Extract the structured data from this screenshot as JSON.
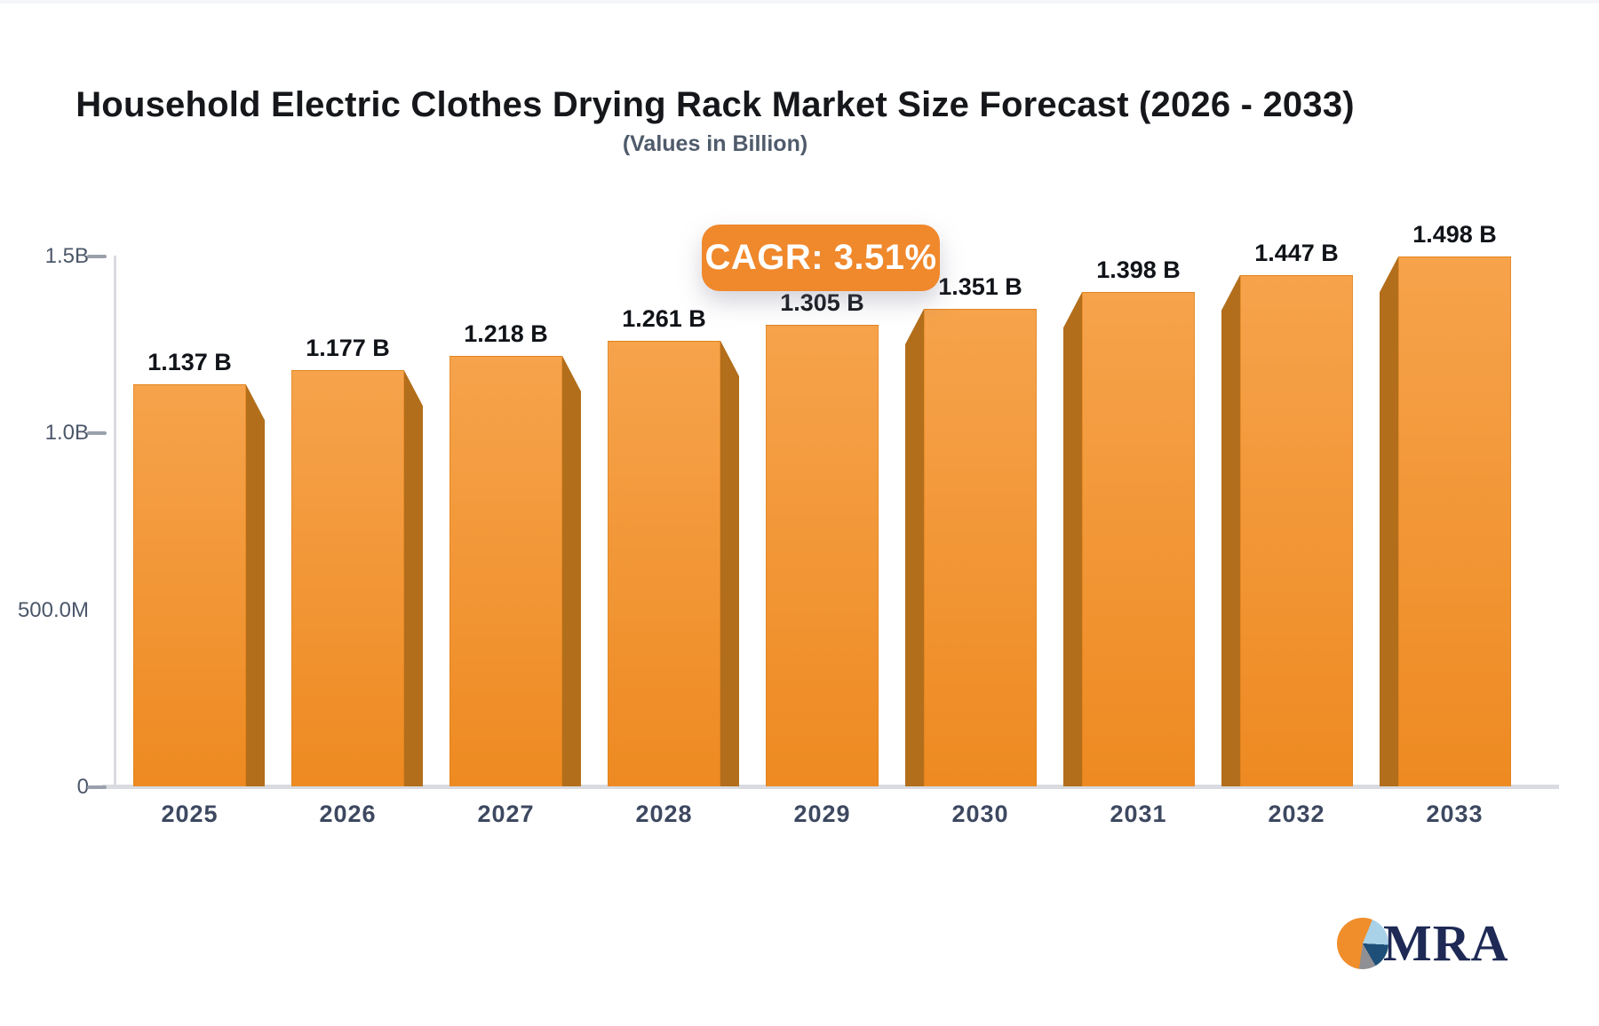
{
  "chart_data": {
    "type": "bar",
    "title": "Household Electric Clothes Drying Rack Market Size Forecast (2026 - 2033)",
    "subtitle": "(Values in Billion)",
    "categories": [
      "2025",
      "2026",
      "2027",
      "2028",
      "2029",
      "2030",
      "2031",
      "2032",
      "2033"
    ],
    "values": [
      1.137,
      1.177,
      1.218,
      1.261,
      1.305,
      1.351,
      1.398,
      1.447,
      1.498
    ],
    "bar_labels": [
      "1.137 B",
      "1.177 B",
      "1.218 B",
      "1.261 B",
      "1.305 B",
      "1.351 B",
      "1.398 B",
      "1.447 B",
      "1.498 B"
    ],
    "unit": "Billion USD",
    "ylim": [
      0,
      1.5
    ],
    "y_ticks": [
      {
        "label": "1.5B",
        "value": 1.5,
        "dash": true
      },
      {
        "label": "1.0B",
        "value": 1.0,
        "dash": true
      },
      {
        "label": "500.0M",
        "value": 0.5,
        "dash": false
      },
      {
        "label": "0",
        "value": 0.0,
        "dash": true
      }
    ],
    "grid": "off",
    "legend": "none",
    "annotations": [
      "CAGR: 3.51%"
    ]
  },
  "badge": {
    "label": "CAGR: 3.51%"
  },
  "logo": {
    "text": "MRA"
  },
  "colors": {
    "title": "#15171a",
    "subtitle": "#4f5b6b",
    "bar_top": "#f6a34c",
    "bar_bottom": "#ee8a21",
    "bar_side": "#b26e1b",
    "axis_line": "#d9dbe1",
    "tick_dash": "#9aa1ac",
    "y_label": "#4b5769",
    "x_label": "#3d4860",
    "value_label": "#101318",
    "badge_bg": "#f0882c",
    "logo_text": "#1e2a55",
    "pie_orange": "#ef8e2b",
    "pie_blue": "#a9d2e8",
    "pie_navy": "#1d4f78",
    "pie_gray": "#8f8f94"
  }
}
